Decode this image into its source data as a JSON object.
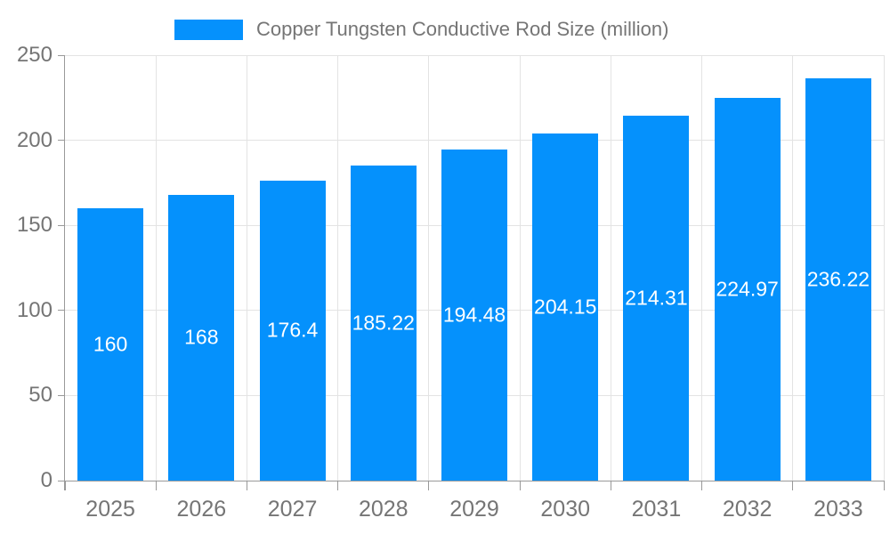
{
  "page": {
    "background": "#ffffff"
  },
  "legend": {
    "label": "Copper Tungsten Conductive Rod Size (million)",
    "swatch_color": "#0591fc"
  },
  "chart_data": {
    "type": "bar",
    "title": "Copper Tungsten Conductive Rod Size (million)",
    "categories": [
      "2025",
      "2026",
      "2027",
      "2028",
      "2029",
      "2030",
      "2031",
      "2032",
      "2033"
    ],
    "values": [
      160,
      168,
      176.4,
      185.22,
      194.48,
      204.15,
      214.31,
      224.97,
      236.22
    ],
    "value_labels": [
      "160",
      "168",
      "176.4",
      "185.22",
      "194.48",
      "204.15",
      "214.31",
      "224.97",
      "236.22"
    ],
    "xlabel": "",
    "ylabel": "",
    "ylim": [
      0,
      250
    ],
    "yticks": [
      0,
      50,
      100,
      150,
      200,
      250
    ],
    "grid": true,
    "legend_position": "top",
    "colors": {
      "bar": "#0591fc",
      "bar_value_text": "#ffffff",
      "axis": "#999999",
      "grid": "#e3e3e3",
      "tick_text": "#757575",
      "legend_text": "#757575"
    }
  }
}
